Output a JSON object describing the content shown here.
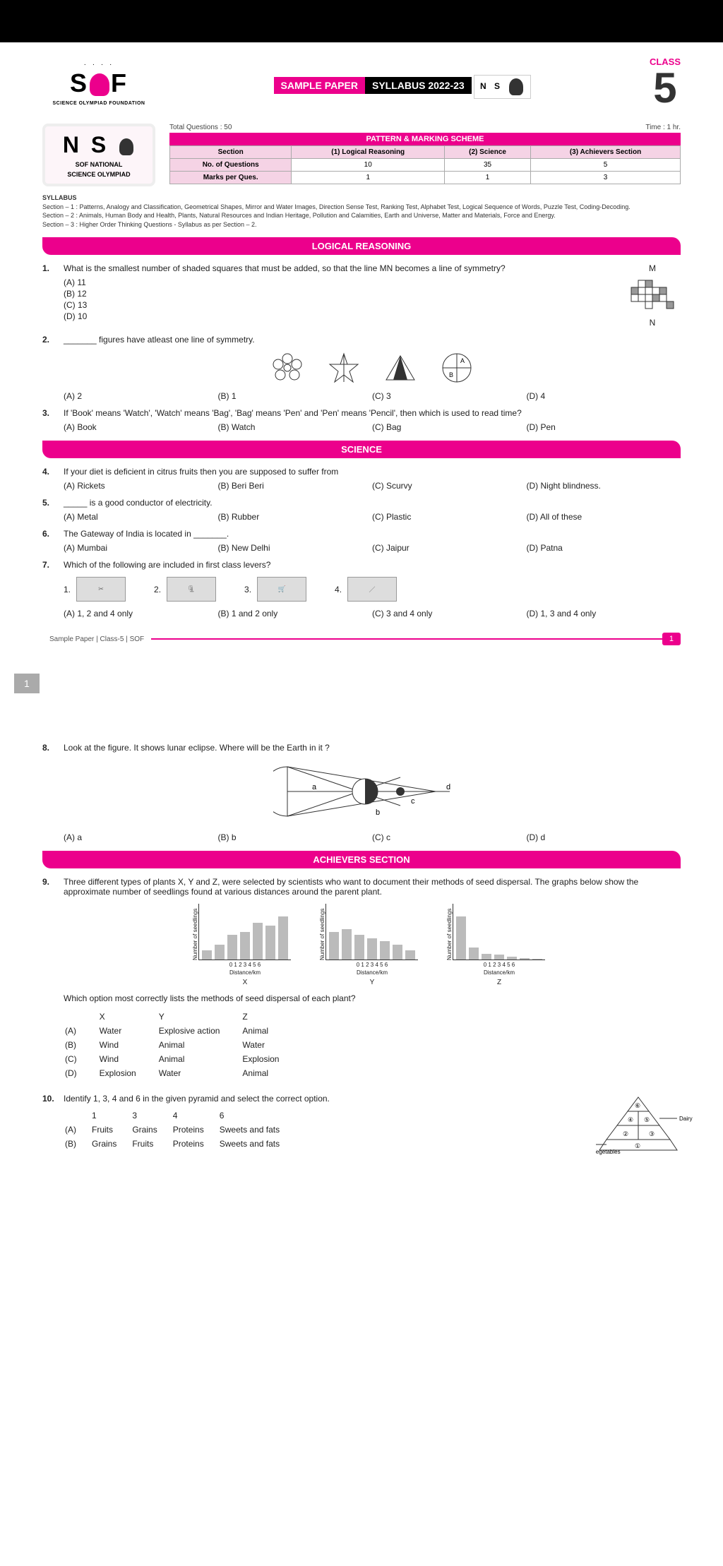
{
  "header": {
    "sof_brand": "SOF",
    "sof_subtitle": "SCIENCE OLYMPIAD FOUNDATION",
    "sample_paper": "SAMPLE PAPER",
    "syllabus_year": "SYLLABUS 2022-23",
    "nso_badge": "N S O",
    "class_label": "CLASS",
    "class_number": "5"
  },
  "nso_box": {
    "title": "N S O",
    "sub1": "SOF NATIONAL",
    "sub2": "SCIENCE OLYMPIAD"
  },
  "meta": {
    "total_q": "Total Questions : 50",
    "time": "Time : 1 hr."
  },
  "pattern": {
    "header": "PATTERN & MARKING SCHEME",
    "cols": [
      "Section",
      "(1) Logical Reasoning",
      "(2) Science",
      "(3) Achievers Section"
    ],
    "rows": [
      [
        "No. of Questions",
        "10",
        "35",
        "5"
      ],
      [
        "Marks per Ques.",
        "1",
        "1",
        "3"
      ]
    ]
  },
  "syllabus": {
    "title": "SYLLABUS",
    "s1": "Section – 1 : Patterns, Analogy and Classification, Geometrical Shapes, Mirror and Water Images, Direction Sense Test, Ranking Test, Alphabet Test, Logical Sequence of Words, Puzzle Test, Coding-Decoding.",
    "s2": "Section – 2 : Animals, Human Body and Health, Plants, Natural Resources and Indian Heritage, Pollution and Calamities, Earth and Universe, Matter and Materials, Force and Energy.",
    "s3": "Section – 3 : Higher Order Thinking Questions - Syllabus as per Section – 2."
  },
  "sections": {
    "logical": "LOGICAL REASONING",
    "science": "SCIENCE",
    "achievers": "ACHIEVERS SECTION"
  },
  "q1": {
    "num": "1.",
    "text": "What is the smallest number of shaded squares that must be added, so that the line MN becomes a line of symmetry?",
    "a": "(A)  11",
    "b": "(B)  12",
    "c": "(C)  13",
    "d": "(D)  10",
    "label_m": "M",
    "label_n": "N"
  },
  "q2": {
    "num": "2.",
    "text": "_______ figures have atleast one line of symmetry.",
    "a": "(A)  2",
    "b": "(B)  1",
    "c": "(C)  3",
    "d": "(D)  4"
  },
  "q3": {
    "num": "3.",
    "text": "If 'Book' means 'Watch', 'Watch' means 'Bag', 'Bag' means 'Pen' and 'Pen' means 'Pencil', then which is used to read time?",
    "a": "(A)  Book",
    "b": "(B)  Watch",
    "c": "(C)  Bag",
    "d": "(D)  Pen"
  },
  "q4": {
    "num": "4.",
    "text": "If your diet is deficient in citrus fruits then you are supposed to suffer from",
    "a": "(A)  Rickets",
    "b": "(B)  Beri Beri",
    "c": "(C)  Scurvy",
    "d": "(D)  Night blindness."
  },
  "q5": {
    "num": "5.",
    "text": "_____ is a good conductor of electricity.",
    "a": "(A)  Metal",
    "b": "(B)  Rubber",
    "c": "(C)  Plastic",
    "d": "(D)  All of these"
  },
  "q6": {
    "num": "6.",
    "text": "The Gateway of India is located in _______.",
    "a": "(A)  Mumbai",
    "b": "(B)  New Delhi",
    "c": "(C)  Jaipur",
    "d": "(D)  Patna"
  },
  "q7": {
    "num": "7.",
    "text": "Which of the following are included in first class levers?",
    "t1": "1.",
    "t2": "2.",
    "t3": "3.",
    "t4": "4.",
    "img1": "scissors",
    "img2": "pliers",
    "img3": "wheelbarrow",
    "img4": "tweezers",
    "a": "(A)  1, 2 and 4 only",
    "b": "(B)  1 and 2 only",
    "c": "(C)  3 and 4 only",
    "d": "(D)  1, 3 and 4 only"
  },
  "footer": {
    "text": "Sample Paper | Class-5 | SOF",
    "page": "1",
    "indicator": "1"
  },
  "q8": {
    "num": "8.",
    "text": "Look at the figure. It shows lunar eclipse. Where will be the Earth in it ?",
    "la": "a",
    "lb": "b",
    "lc": "c",
    "ld": "d",
    "a": "(A)  a",
    "b": "(B)  b",
    "c": "(C)  c",
    "d": "(D)  d"
  },
  "q9": {
    "num": "9.",
    "text": "Three different types of plants X, Y and Z, were selected by scientists who want to document their methods of seed dispersal. The graphs below show the approximate number of seedlings found at various distances around the parent plant.",
    "chart_ylabel": "Number of seedlings",
    "chart_xlabel": "Distance/km",
    "chart_ticks": [
      "0",
      "1",
      "2",
      "3",
      "4",
      "5",
      "6"
    ],
    "chart_x": {
      "label": "X",
      "values": [
        15,
        25,
        40,
        45,
        60,
        55,
        70
      ]
    },
    "chart_y": {
      "label": "Y",
      "values": [
        45,
        50,
        40,
        35,
        30,
        25,
        15
      ]
    },
    "chart_z": {
      "label": "Z",
      "values": [
        70,
        20,
        10,
        8,
        5,
        3,
        2
      ]
    },
    "bar_color": "#bbbbbb",
    "sub_text": "Which option most correctly lists the methods of seed dispersal of each plant?",
    "headers": [
      "",
      "X",
      "Y",
      "Z"
    ],
    "rows": [
      [
        "(A)",
        "Water",
        "Explosive action",
        "Animal"
      ],
      [
        "(B)",
        "Wind",
        "Animal",
        "Water"
      ],
      [
        "(C)",
        "Wind",
        "Animal",
        "Explosion"
      ],
      [
        "(D)",
        "Explosion",
        "Water",
        "Animal"
      ]
    ]
  },
  "q10": {
    "num": "10.",
    "text": "Identify 1, 3, 4 and 6 in the given pyramid and select the correct option.",
    "headers": [
      "",
      "1",
      "3",
      "4",
      "6"
    ],
    "rows": [
      [
        "(A)",
        "Fruits",
        "Grains",
        "Proteins",
        "Sweets and fats"
      ],
      [
        "(B)",
        "Grains",
        "Fruits",
        "Proteins",
        "Sweets and fats"
      ]
    ],
    "pyramid_labels": [
      "⑥",
      "④ ⑤",
      "② ③",
      "①"
    ],
    "pyramid_side1": "Dairy",
    "pyramid_side2": "Vegetables"
  }
}
